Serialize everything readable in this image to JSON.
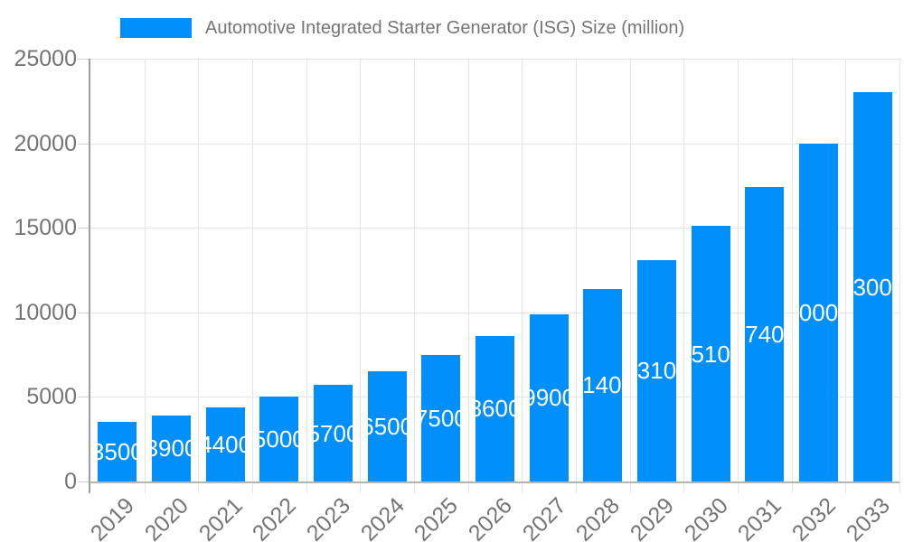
{
  "legend": {
    "label": "Automotive Integrated Starter Generator (ISG) Size (million)"
  },
  "chart_data": {
    "type": "bar",
    "title": "Automotive Integrated Starter Generator (ISG) Size (million)",
    "series_name": "Automotive Integrated Starter Generator (ISG) Size (million)",
    "categories": [
      "2019",
      "2020",
      "2021",
      "2022",
      "2023",
      "2024",
      "2025",
      "2026",
      "2027",
      "2028",
      "2029",
      "2030",
      "2031",
      "2032",
      "2033"
    ],
    "values": [
      3500,
      3900,
      4400,
      5000,
      5700,
      6500,
      7500,
      8600,
      9900,
      11400,
      13100,
      15100,
      17400,
      20000,
      23000
    ],
    "xlabel": "",
    "ylabel": "",
    "ylim": [
      0,
      25000
    ],
    "yticks": [
      0,
      5000,
      10000,
      15000,
      20000,
      25000
    ],
    "grid": true,
    "legend_position": "top",
    "value_labels": "inside-center-white",
    "colors": {
      "bar": "#008FFB",
      "bar_value_text": "#ffffff",
      "axis_text": "#757575",
      "gridline": "#e6e6e6",
      "tick": "#cfcfcf",
      "y_axis_line": "#9e9e9e",
      "x_axis_line": "#b5b5b5",
      "background": "#ffffff"
    }
  }
}
